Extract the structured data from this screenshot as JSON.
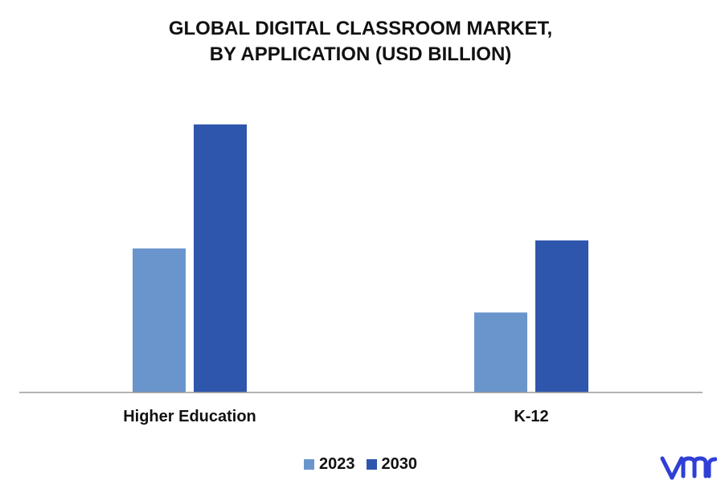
{
  "title": {
    "line1": "GLOBAL DIGITAL CLASSROOM MARKET,",
    "line2": "BY APPLICATION (USD BILLION)"
  },
  "colors": {
    "series_2023": "#6a95cc",
    "series_2030": "#2f56ad",
    "axis": "#9a9a9a",
    "logo": "#2f3fd6"
  },
  "chart_data": {
    "type": "bar",
    "categories": [
      "Higher Education",
      "K-12"
    ],
    "series": [
      {
        "name": "2023",
        "values": [
          18,
          10
        ]
      },
      {
        "name": "2030",
        "values": [
          33.5,
          19
        ]
      }
    ],
    "title": "GLOBAL DIGITAL CLASSROOM MARKET, BY APPLICATION (USD BILLION)",
    "xlabel": "",
    "ylabel": "",
    "ylim": [
      0,
      40
    ],
    "grid": false,
    "legend": "bottom-center"
  },
  "logo": {
    "icon": "vmr-logo-icon"
  }
}
